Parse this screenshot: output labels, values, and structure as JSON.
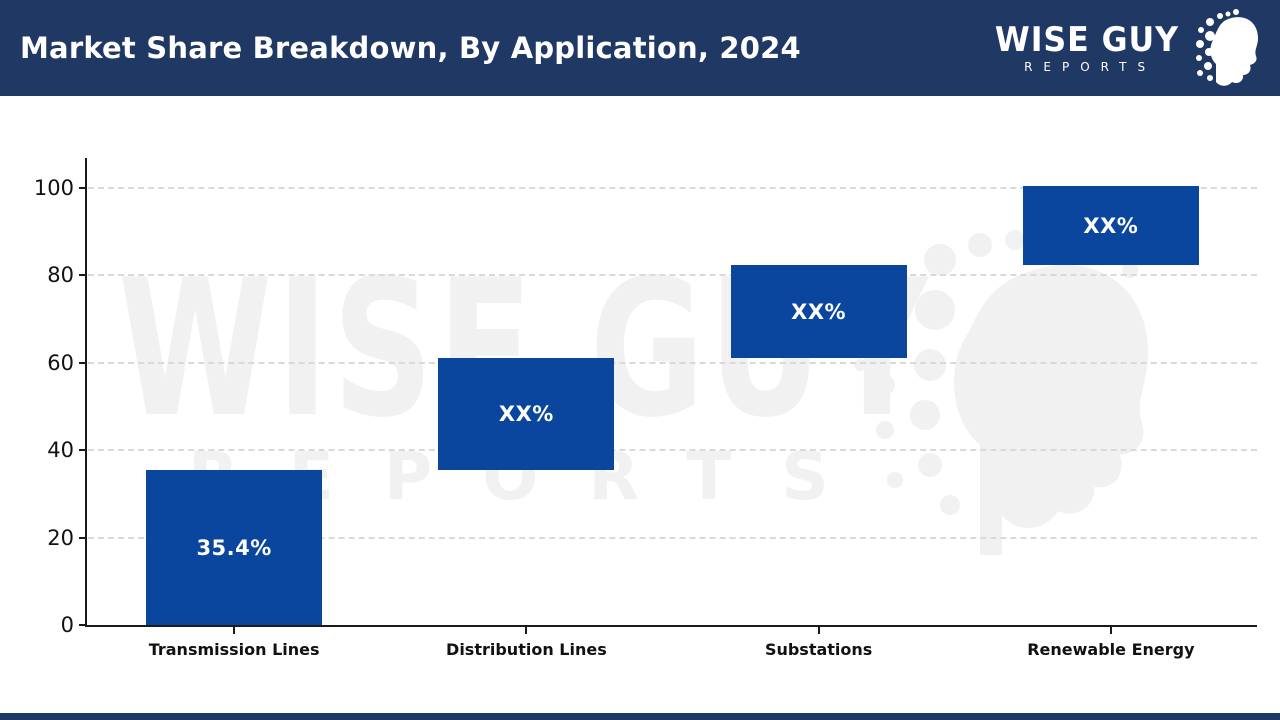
{
  "header": {
    "title": "Market Share Breakdown, By Application, 2024",
    "logo": {
      "line1": "WISE GUY",
      "line2": "REPORTS"
    },
    "bg_color": "#1f3864"
  },
  "watermark": {
    "line1": "WISE GUY",
    "line2": "REPORTS"
  },
  "chart_data": {
    "type": "bar",
    "subtype": "waterfall",
    "title": "Market Share Breakdown, By Application, 2024",
    "categories": [
      "Transmission Lines",
      "Distribution Lines",
      "Substations",
      "Renewable Energy"
    ],
    "series": [
      {
        "name": "Market Share",
        "segments": [
          {
            "category": "Transmission Lines",
            "start": 0,
            "end": 35.4,
            "label": "35.4%"
          },
          {
            "category": "Distribution Lines",
            "start": 35.4,
            "end": 61.0,
            "label": "XX%"
          },
          {
            "category": "Substations",
            "start": 61.0,
            "end": 82.3,
            "label": "XX%"
          },
          {
            "category": "Renewable Energy",
            "start": 82.3,
            "end": 100.3,
            "label": "XX%"
          }
        ]
      }
    ],
    "bar_labels": [
      "35.4%",
      "XX%",
      "XX%",
      "XX%"
    ],
    "xlabel": "",
    "ylabel": "",
    "ylim": [
      0,
      106
    ],
    "yticks": [
      0,
      20,
      40,
      60,
      80,
      100
    ],
    "grid": "horizontal-dashed",
    "legend": "none",
    "bar_color": "#0a469e",
    "grid_color": "#d9d9d9",
    "axis_color": "#1a1a1a",
    "label_color_inside": "#ffffff"
  }
}
